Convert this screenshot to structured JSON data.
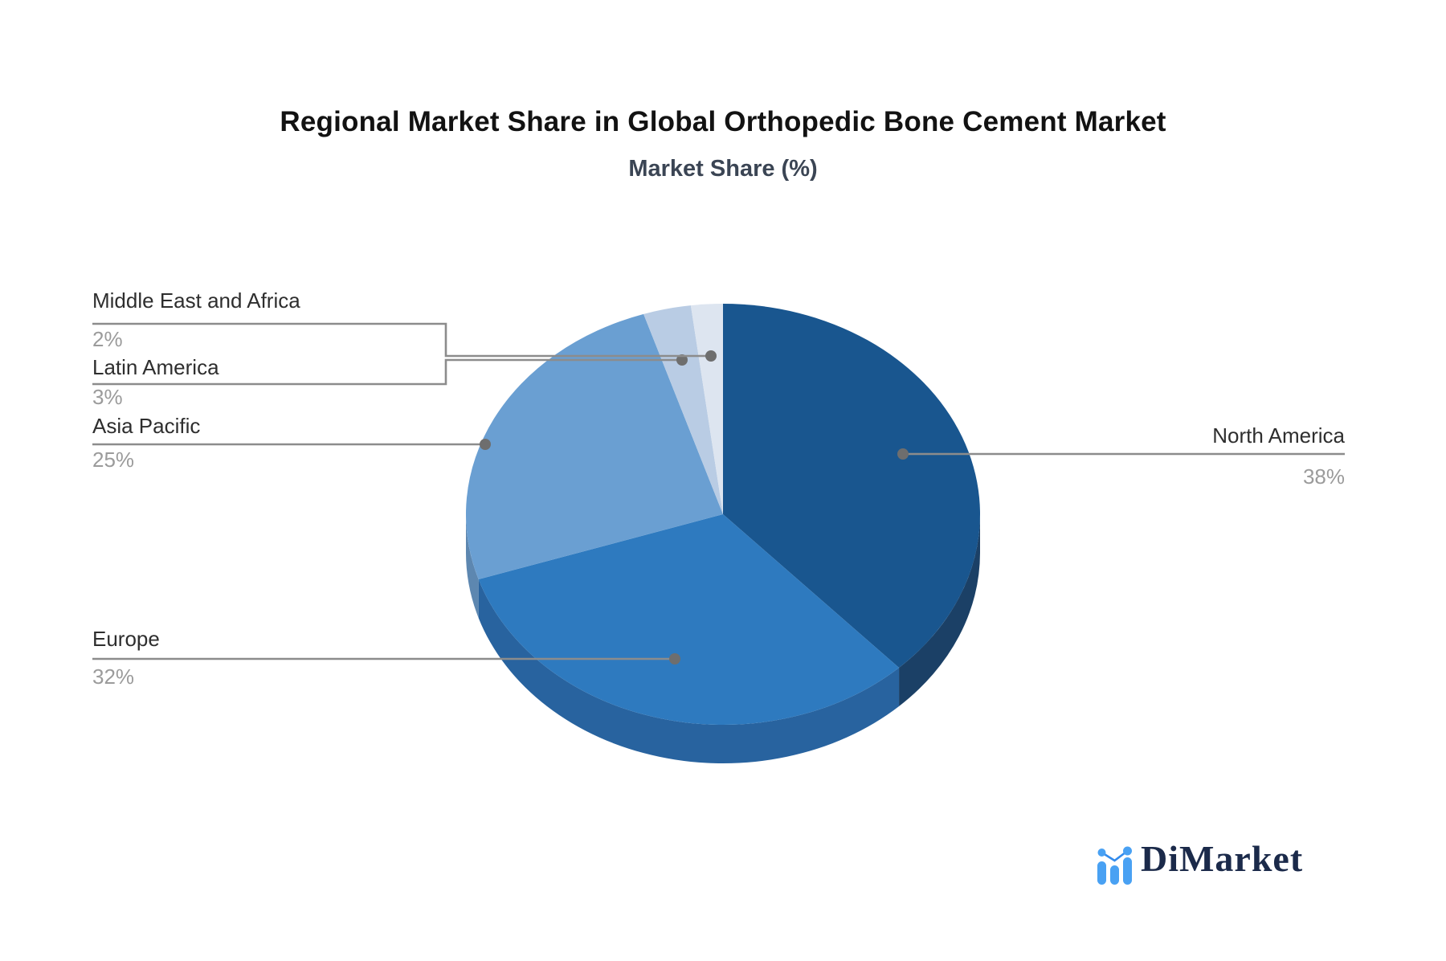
{
  "chart_data": {
    "type": "pie",
    "title": "Regional Market Share in Global Orthopedic Bone Cement Market",
    "subtitle": "Market Share (%)",
    "unit": "%",
    "style": "3d",
    "start_angle": "top",
    "direction": "clockwise",
    "legend_position": "leader-labels",
    "slices": [
      {
        "label": "North America",
        "value": 38,
        "display": "38%",
        "color": "#19568f",
        "side_color": "#1b4066"
      },
      {
        "label": "Europe",
        "value": 32,
        "display": "32%",
        "color": "#2e7abf",
        "side_color": "#28639f"
      },
      {
        "label": "Asia Pacific",
        "value": 25,
        "display": "25%",
        "color": "#6a9fd2",
        "side_color": "#5d87b0"
      },
      {
        "label": "Latin America",
        "value": 3,
        "display": "3%",
        "color": "#b9cce4"
      },
      {
        "label": "Middle East and Africa",
        "value": 2,
        "display": "2%",
        "color": "#dde5f0"
      }
    ],
    "label_color": "#2e2e2e",
    "value_color": "#9b9b9b",
    "leader_line_color": "#8c8c8c",
    "leader_dot_color": "#6e6e6e"
  },
  "brand": {
    "name": "DiMarket",
    "text_color": "#1b2a4a",
    "icon_bar_color": "#49a1f3",
    "icon_line_color": "#338bec"
  }
}
